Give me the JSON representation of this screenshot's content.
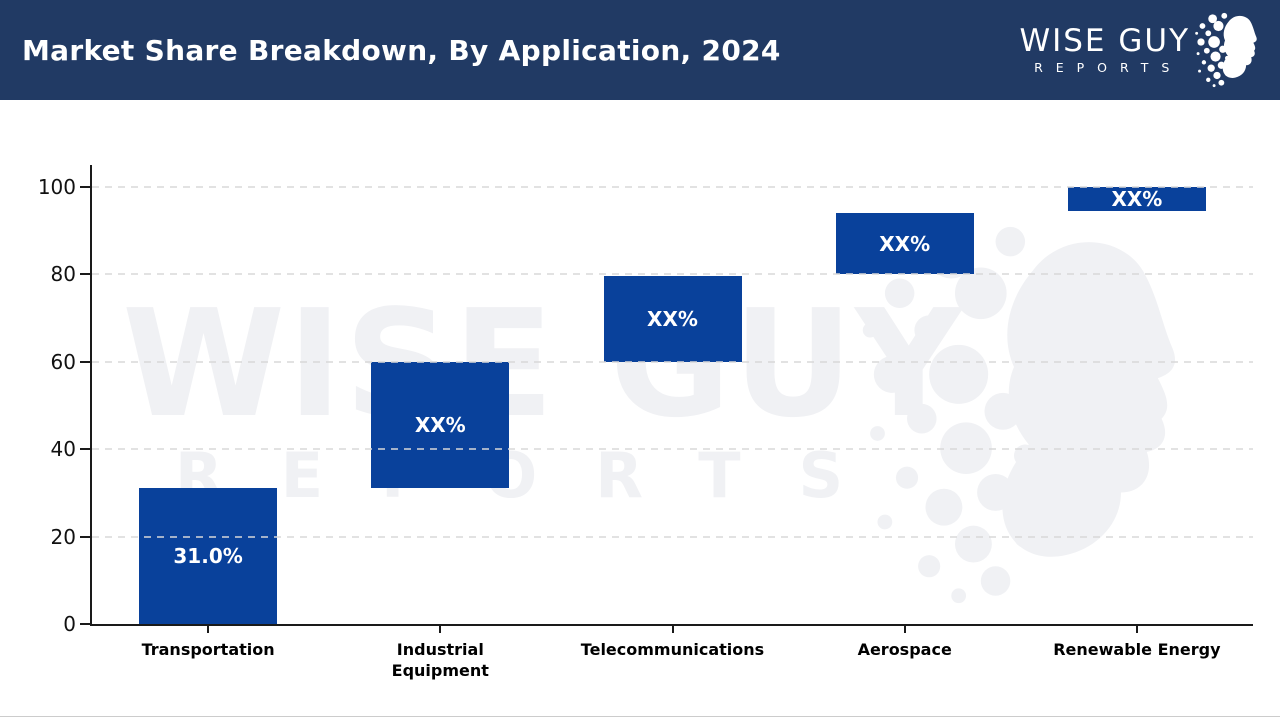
{
  "header": {
    "title": "Market Share Breakdown, By Application, 2024",
    "logo": {
      "line1": "WISE GUY",
      "line2": "REPORTS"
    }
  },
  "watermark": {
    "line1": "WISE GUY",
    "line2": "REPORTS"
  },
  "chart_data": {
    "type": "bar",
    "subtype": "waterfall",
    "title": "Market Share Breakdown, By Application, 2024",
    "xlabel": "",
    "ylabel": "",
    "ylim": [
      0,
      105
    ],
    "yticks": [
      0,
      20,
      40,
      60,
      80,
      100
    ],
    "grid": true,
    "grid_style": "dashed",
    "legend": false,
    "categories": [
      "Transportation",
      "Industrial Equipment",
      "Telecommunications",
      "Aerospace",
      "Renewable Energy"
    ],
    "segments": [
      {
        "category": "Transportation",
        "label": "Transportation",
        "start": 0,
        "end": 31.0,
        "value_label": "31.0%"
      },
      {
        "category": "Industrial Equipment",
        "label": "Industrial\nEquipment",
        "start": 31.0,
        "end": 60.0,
        "value_label": "XX%"
      },
      {
        "category": "Telecommunications",
        "label": "Telecommunications",
        "start": 60.0,
        "end": 79.5,
        "value_label": "XX%"
      },
      {
        "category": "Aerospace",
        "label": "Aerospace",
        "start": 80.0,
        "end": 94.0,
        "value_label": "XX%"
      },
      {
        "category": "Renewable Energy",
        "label": "Renewable Energy",
        "start": 94.5,
        "end": 100.0,
        "value_label": "XX%"
      }
    ]
  },
  "colors": {
    "header_bg": "#213a64",
    "bar": "#09419b",
    "bar_label": "#ffffff",
    "axis": "#1a1a1a",
    "grid": "#d8d8d8",
    "watermark": "#f0f1f4",
    "title_text": "#ffffff"
  }
}
